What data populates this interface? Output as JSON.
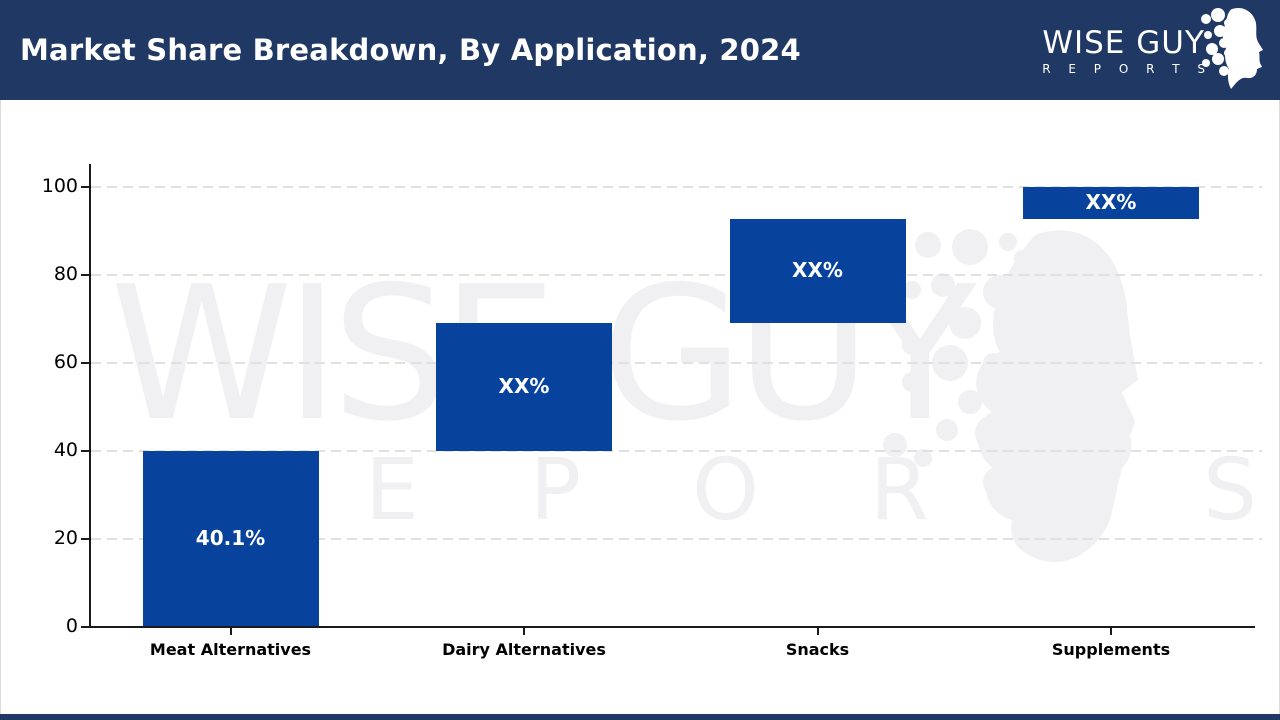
{
  "header": {
    "title": "Market Share Breakdown, By Application, 2024",
    "logo": {
      "name": "Wise Guy Reports",
      "line1": "WISE GUY",
      "line2": "R E P O R T S"
    }
  },
  "watermark": {
    "line1": "WISE GUY",
    "line2": "R E P O R T S"
  },
  "chart_data": {
    "type": "bar",
    "subtype": "waterfall",
    "title": "Market Share Breakdown, By Application, 2024",
    "categories": [
      "Meat Alternatives",
      "Dairy Alternatives",
      "Snacks",
      "Supplements"
    ],
    "segments": [
      {
        "category": "Meat Alternatives",
        "start": 0,
        "end": 40.1,
        "label": "40.1%"
      },
      {
        "category": "Dairy Alternatives",
        "start": 40.1,
        "end": 69.0,
        "label": "XX%"
      },
      {
        "category": "Snacks",
        "start": 69.0,
        "end": 92.7,
        "label": "XX%"
      },
      {
        "category": "Supplements",
        "start": 92.7,
        "end": 100,
        "label": "XX%"
      }
    ],
    "ylim": [
      0,
      100
    ],
    "yticks": [
      0,
      20,
      40,
      60,
      80,
      100
    ],
    "xlabel": "",
    "ylabel": "",
    "grid": "horizontal-dashed",
    "legend": "none",
    "bar_color": "#07439c",
    "bar_label_color": "#ffffff"
  },
  "colors": {
    "header_bg": "#1f3864",
    "footer_bg": "#1f3864",
    "page_bg": "#ffffff",
    "axis": "#1a1a1a",
    "grid": "#e0e0e0",
    "watermark": "#f0f0f2",
    "title_text": "#ffffff"
  }
}
